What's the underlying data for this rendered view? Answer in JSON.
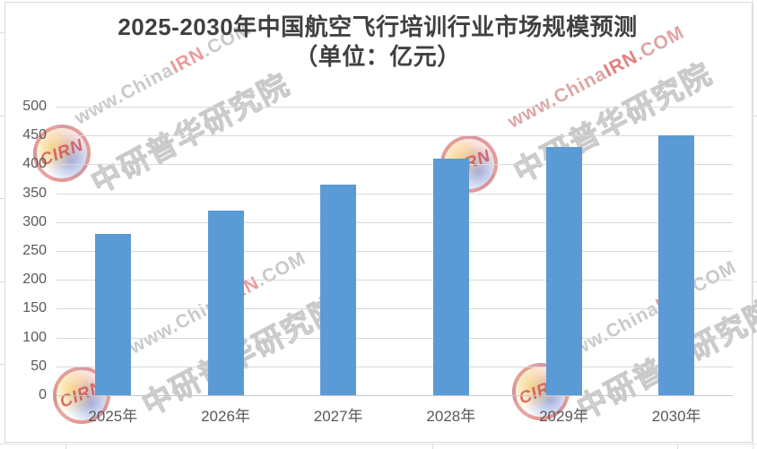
{
  "title": {
    "line1": "2025-2030年中国航空飞行培训行业市场规模预测",
    "line2": "（单位：亿元）"
  },
  "chart_data": {
    "type": "bar",
    "title": "2025-2030年中国航空飞行培训行业市场规模预测（单位：亿元）",
    "categories": [
      "2025年",
      "2026年",
      "2027年",
      "2028年",
      "2029年",
      "2030年"
    ],
    "values": [
      280,
      320,
      365,
      410,
      430,
      450
    ],
    "xlabel": "",
    "ylabel": "",
    "ylim": [
      0,
      500
    ],
    "ytick_step": 50,
    "yticks": [
      0,
      50,
      100,
      150,
      200,
      250,
      300,
      350,
      400,
      450,
      500
    ],
    "grid": true,
    "legend": false,
    "bar_color": "#5b9bd5",
    "gridline_color": "#d9d9d9",
    "axis_line_color": "#c6c6c6",
    "tick_label_color": "#595959",
    "title_color": "#404040",
    "unit": "亿元"
  },
  "watermark": {
    "url_prefix": "www.",
    "url_mid": "China",
    "url_accent": "IRN",
    "url_suffix": ".COM",
    "cn_name": "中研普华研究院",
    "logo_text": "CIRN"
  }
}
